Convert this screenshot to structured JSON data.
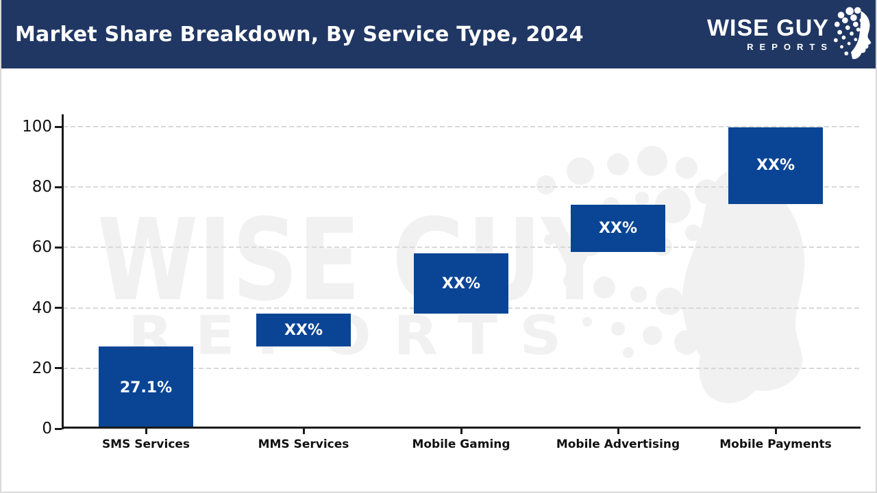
{
  "header": {
    "title": "Market Share Breakdown, By Service Type, 2024"
  },
  "logo": {
    "line1": "WISE GUY",
    "line2": "REPORTS"
  },
  "watermark": {
    "line1": "WISE GUY",
    "line2": "REPORTS"
  },
  "colors": {
    "header_bg": "#203764",
    "bar": "#0A4595",
    "bar_label": "#ffffff",
    "axis": "#1a1a1a",
    "gridline": "#d8d8d8",
    "watermark": "#f1f1f2"
  },
  "chart_data": {
    "type": "bar",
    "subtype": "waterfall",
    "title": "Market Share Breakdown, By Service Type, 2024",
    "xlabel": "",
    "ylabel": "",
    "unit": "%",
    "ylim": [
      0,
      104
    ],
    "yticks": [
      0,
      20,
      40,
      60,
      80,
      100
    ],
    "grid": "horizontal-dashed",
    "legend": "none",
    "categories": [
      "SMS Services",
      "MMS Services",
      "Mobile Gaming",
      "Mobile Advertising",
      "Mobile Payments"
    ],
    "segments": [
      {
        "category": "SMS Services",
        "start": 0,
        "end": 27.1,
        "label": "27.1%"
      },
      {
        "category": "MMS Services",
        "start": 27.1,
        "end": 38,
        "label": "XX%"
      },
      {
        "category": "Mobile Gaming",
        "start": 38,
        "end": 58,
        "label": "XX%"
      },
      {
        "category": "Mobile Advertising",
        "start": 58.5,
        "end": 74.2,
        "label": "XX%"
      },
      {
        "category": "Mobile Payments",
        "start": 74.4,
        "end": 99.8,
        "label": "XX%"
      }
    ]
  }
}
